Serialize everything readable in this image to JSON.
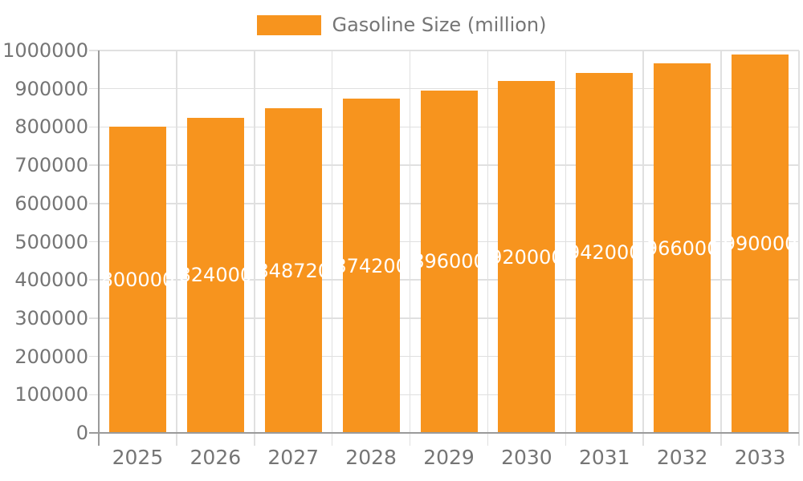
{
  "chart_data": {
    "type": "bar",
    "title": "",
    "legend_label": "Gasoline Size (million)",
    "legend_position": "top-center",
    "categories": [
      "2025",
      "2026",
      "2027",
      "2028",
      "2029",
      "2030",
      "2031",
      "2032",
      "2033"
    ],
    "values": [
      800000,
      824000,
      848720,
      874200,
      896000,
      920000,
      942000,
      966000,
      990000
    ],
    "value_labels": [
      "800000",
      "824000",
      "848720",
      "874200",
      "896000",
      "920000",
      "942000",
      "966000",
      "990000"
    ],
    "xlabel": "",
    "ylabel": "",
    "ylim": [
      0,
      1000000
    ],
    "yticks": [
      0,
      100000,
      200000,
      300000,
      400000,
      500000,
      600000,
      700000,
      800000,
      900000,
      1000000
    ],
    "grid": true,
    "bar_color": "#f7941e",
    "value_label_color": "#ffffff",
    "grid_color": "#e0e0e0",
    "axis_color": "#9a9a9a",
    "text_color": "#757575"
  }
}
